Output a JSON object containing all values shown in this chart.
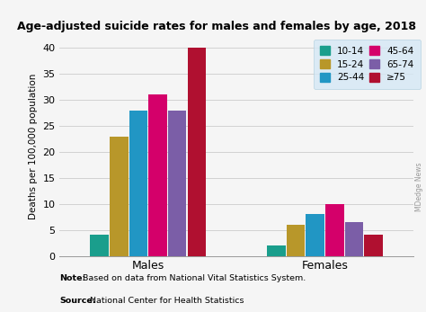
{
  "title": "Age-adjusted suicide rates for males and females by age, 2018",
  "ylabel": "Deaths per 100,000 population",
  "groups": [
    "Males",
    "Females"
  ],
  "age_groups": [
    "10-14",
    "15-24",
    "25-44",
    "45-64",
    "65-74",
    "≥75"
  ],
  "colors": [
    "#1a9e8c",
    "#b8972a",
    "#2196c4",
    "#d4006a",
    "#7b5ea7",
    "#b01030"
  ],
  "males": [
    4,
    23,
    28,
    31,
    28,
    40
  ],
  "females": [
    2,
    6,
    8,
    10,
    6.5,
    4
  ],
  "ylim": [
    0,
    42
  ],
  "yticks": [
    0,
    5,
    10,
    15,
    20,
    25,
    30,
    35,
    40
  ],
  "legend_bg": "#d5e8f5",
  "note_bold": "Note:",
  "note_rest": " Based on data from National Vital Statistics System.",
  "source_bold": "Source:",
  "source_rest": " National Center for Health Statistics",
  "watermark": "MDedge News",
  "bg_color": "#f5f5f5"
}
